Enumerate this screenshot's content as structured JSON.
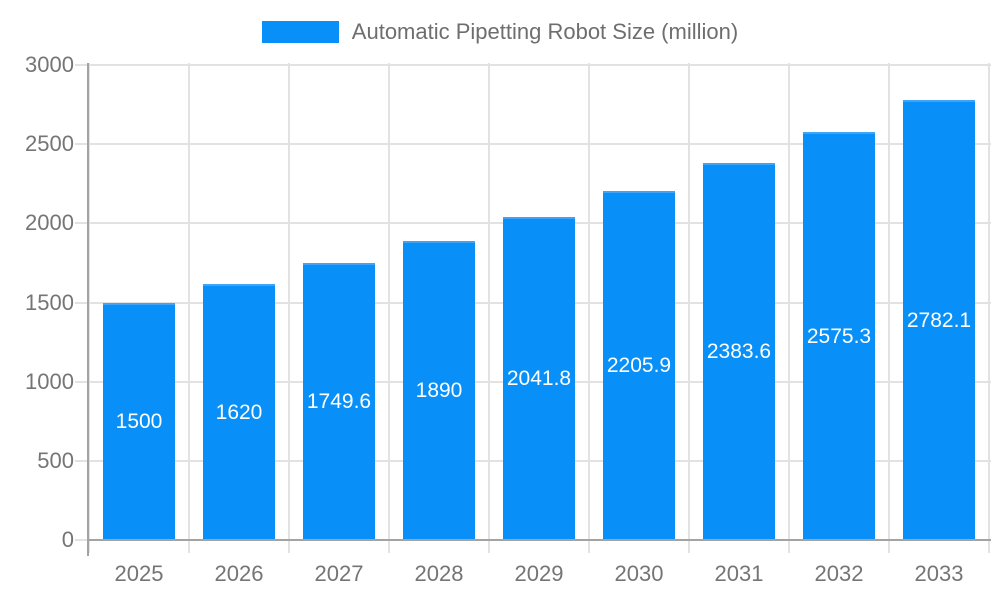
{
  "chart_data": {
    "type": "bar",
    "title": "Automatic Pipetting Robot Size (million)",
    "categories": [
      "2025",
      "2026",
      "2027",
      "2028",
      "2029",
      "2030",
      "2031",
      "2032",
      "2033"
    ],
    "values": [
      1500,
      1620,
      1749.6,
      1890,
      2041.8,
      2205.9,
      2383.6,
      2575.3,
      2782.1
    ],
    "value_labels": [
      "1500",
      "1620",
      "1749.6",
      "1890",
      "2041.8",
      "2205.9",
      "2383.6",
      "2575.3",
      "2782.1"
    ],
    "xlabel": "",
    "ylabel": "",
    "ylim": [
      0,
      3000
    ],
    "yticks": [
      0,
      500,
      1000,
      1500,
      2000,
      2500,
      3000
    ],
    "ytick_labels": [
      "0",
      "500",
      "1000",
      "1500",
      "2000",
      "2500",
      "3000"
    ],
    "grid": true,
    "legend_position": "top",
    "colors": {
      "bar": "#0890f8",
      "bar_top_edge": "#3fa4f7",
      "value_text": "#ffffff",
      "axis_text": "#757575",
      "legend_text": "#6e6e6e",
      "gridline": "#e2e2e2",
      "axis_line": "#a3a3a3",
      "background": "#ffffff"
    }
  }
}
